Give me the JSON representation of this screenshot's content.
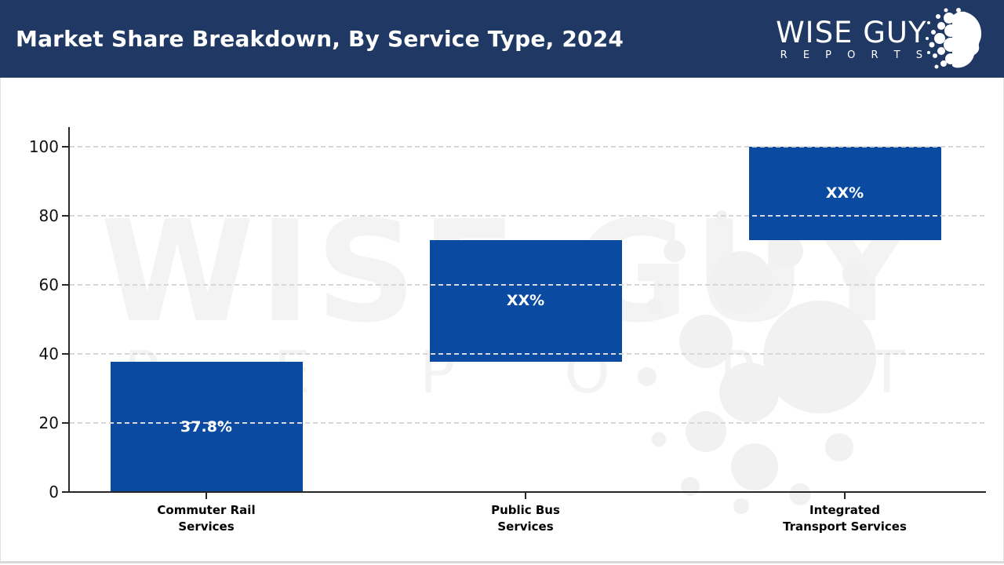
{
  "header": {
    "title": "Market Share Breakdown, By Service Type, 2024",
    "logo": {
      "wordmark": "WISE GUY",
      "subtext": "R E P O R T S"
    }
  },
  "watermark": {
    "wordmark": "WISE GUY",
    "subtext": "R E P O R T S"
  },
  "chart_data": {
    "type": "bar",
    "variant": "waterfall-stacked-percentage",
    "title": "Market Share Breakdown, By Service Type, 2024",
    "categories": [
      {
        "name": "Commuter Rail Services",
        "lines": [
          "Commuter Rail",
          "Services"
        ]
      },
      {
        "name": "Public Bus Services",
        "lines": [
          "Public Bus",
          "Services"
        ]
      },
      {
        "name": "Integrated Transport Services",
        "lines": [
          "Integrated",
          "Transport Services"
        ]
      }
    ],
    "segments": [
      {
        "category": "Commuter Rail Services",
        "start": 0,
        "end": 37.8,
        "label": "37.8%"
      },
      {
        "category": "Public Bus Services",
        "start": 37.8,
        "end": 73,
        "label": "XX%"
      },
      {
        "category": "Integrated Transport Services",
        "start": 73,
        "end": 100,
        "label": "XX%"
      }
    ],
    "ylim": [
      0,
      100
    ],
    "yticks": [
      0,
      20,
      40,
      60,
      80,
      100
    ],
    "xlabel": "",
    "ylabel": "",
    "legend": "none",
    "grid": {
      "horizontal": true,
      "style": "dashed"
    }
  },
  "colors": {
    "header_bg": "#1f3864",
    "bar": "#0a4ba1",
    "axis": "#262626",
    "grid": "#d7d7d7",
    "value_label": "#ffffff",
    "watermark": "#f3f3f3"
  }
}
